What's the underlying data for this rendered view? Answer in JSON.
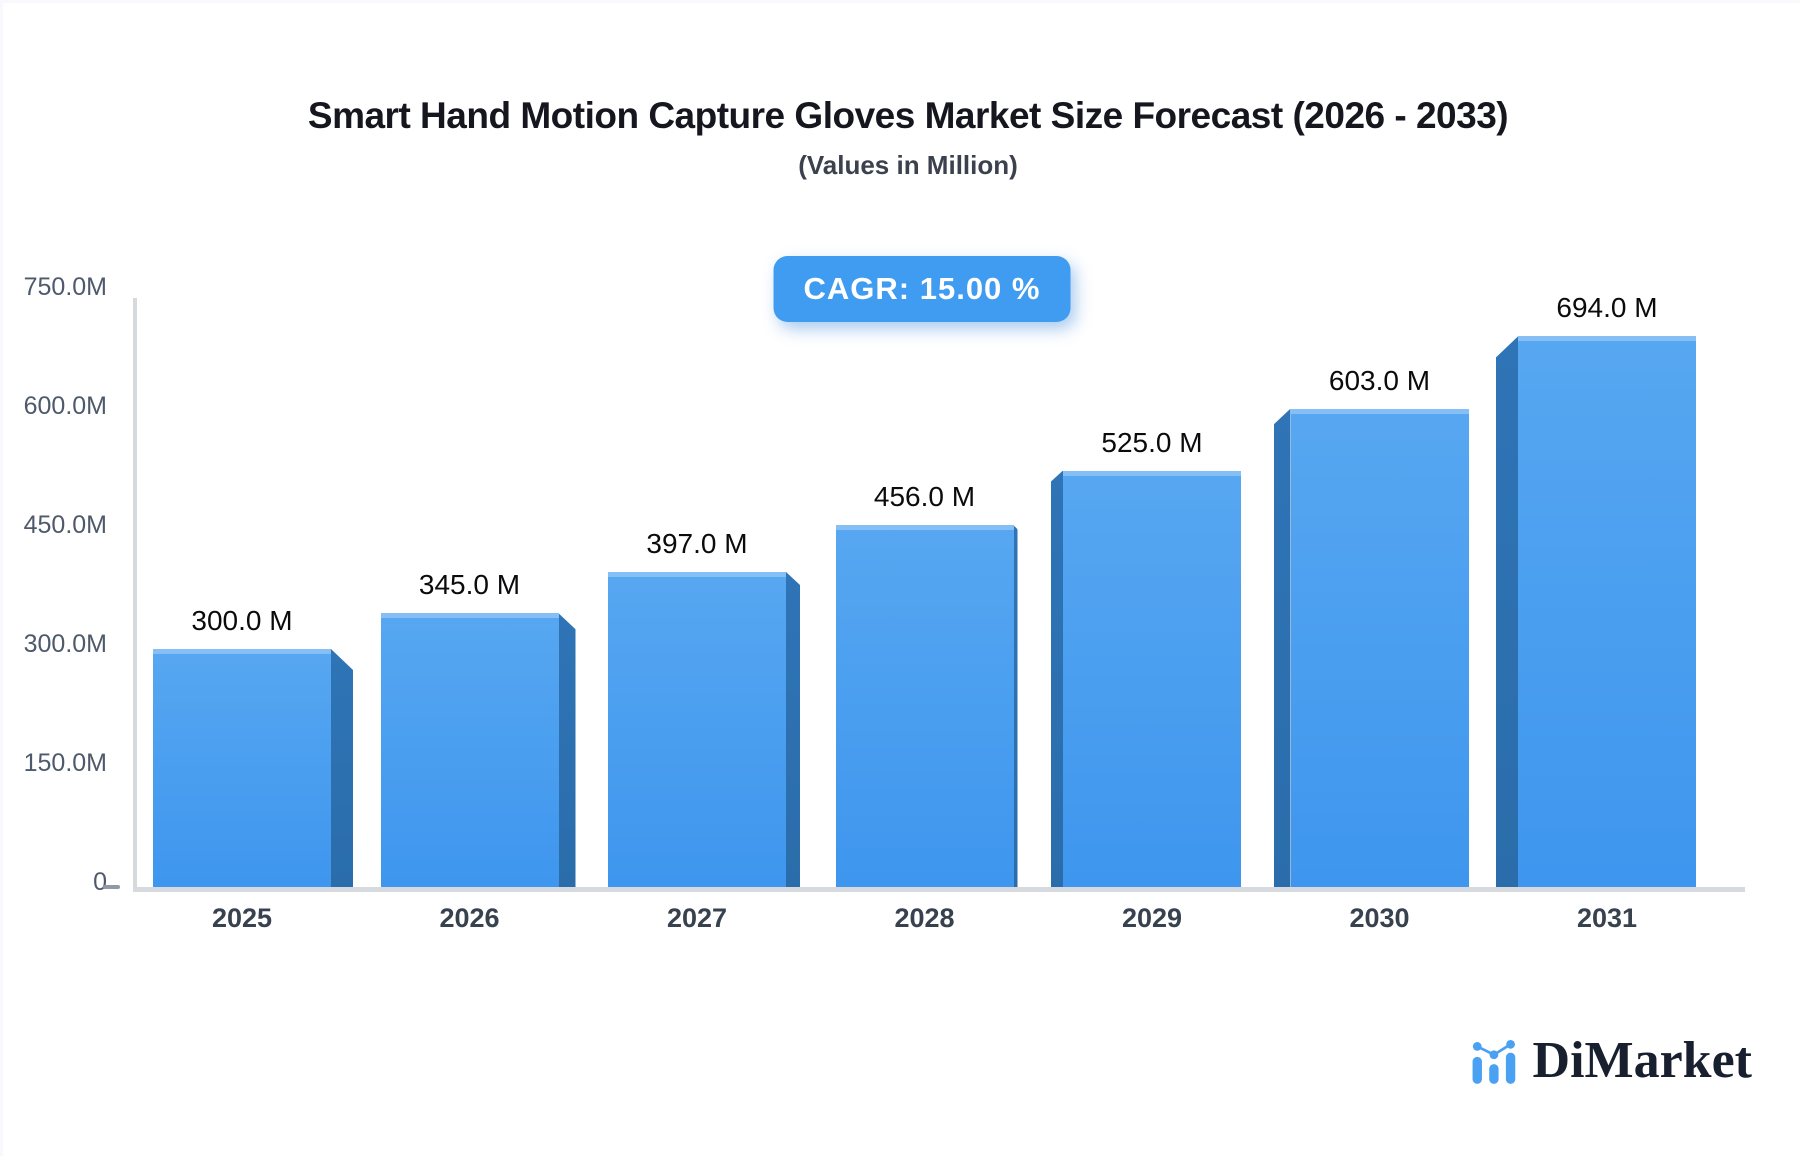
{
  "header": {
    "title": "Smart Hand Motion Capture Gloves Market Size Forecast (2026 - 2033)",
    "subtitle": "(Values in Million)",
    "cagr_badge": "CAGR: 15.00 %"
  },
  "chart_data": {
    "type": "bar",
    "title": "Smart Hand Motion Capture Gloves Market Size Forecast (2026 - 2033)",
    "subtitle": "(Values in Million)",
    "cagr_percent": 15.0,
    "categories": [
      "2025",
      "2026",
      "2027",
      "2028",
      "2029",
      "2030",
      "2031"
    ],
    "values": [
      300,
      345,
      397,
      456,
      525,
      603,
      694
    ],
    "value_labels": [
      "300.0 M",
      "345.0 M",
      "397.0 M",
      "456.0 M",
      "525.0 M",
      "603.0 M",
      "694.0 M"
    ],
    "xlabel": "",
    "ylabel": "",
    "ylim": [
      0,
      750
    ],
    "yticks": [
      {
        "value": 0,
        "label": "0"
      },
      {
        "value": 150,
        "label": "150.0M"
      },
      {
        "value": 300,
        "label": "300.0M"
      },
      {
        "value": 450,
        "label": "450.0M"
      },
      {
        "value": 600,
        "label": "600.0M"
      },
      {
        "value": 750,
        "label": "750.0M"
      }
    ],
    "grid": false,
    "legend": null,
    "style": "3d-bars-center-perspective"
  },
  "branding": {
    "logo_text": "DiMarket",
    "logo_icon": "bar-chart-with-trend-dots-icon"
  },
  "theme": {
    "accent_blue": "#3f9cf0",
    "bar_face_top": "#57a7f1",
    "bar_face_bottom": "#3e96ee",
    "bar_side": "#2e74b6",
    "axis_line_color": "#d6d9dd",
    "title_color": "#15161e",
    "y_label_color": "#4e5a6c",
    "x_label_color": "#38424f",
    "value_label_color": "#0b0b0d",
    "logo_color": "#18202f",
    "logo_icon_blue": "#4aa0f2",
    "background": "#ffffff"
  }
}
